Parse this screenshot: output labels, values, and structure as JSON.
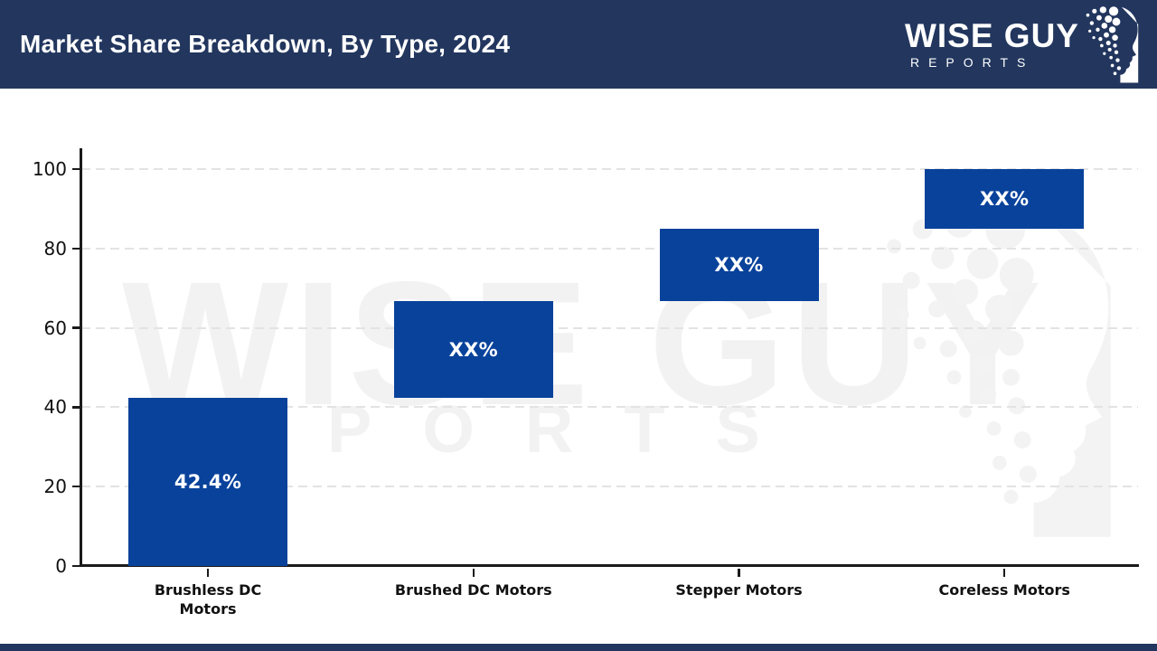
{
  "header": {
    "title": "Market Share Breakdown, By Type, 2024",
    "logo": {
      "wordmark": "WISE GUY",
      "subtext": "REPORTS"
    }
  },
  "watermark": {
    "line1": "WISE GUY",
    "line2": "PORTS"
  },
  "chart_data": {
    "type": "bar",
    "subtype": "waterfall-floating-bars",
    "title": "Market Share Breakdown, By Type, 2024",
    "categories": [
      "Brushless DC Motors",
      "Brushed DC Motors",
      "Stepper Motors",
      "Coreless Motors"
    ],
    "segments": [
      {
        "category": "Brushless DC Motors",
        "start": 0,
        "end": 42.4,
        "label": "42.4%"
      },
      {
        "category": "Brushed DC Motors",
        "start": 42.4,
        "end": 66.7,
        "label": "XX%"
      },
      {
        "category": "Stepper Motors",
        "start": 66.7,
        "end": 85.0,
        "label": "XX%"
      },
      {
        "category": "Coreless Motors",
        "start": 85.0,
        "end": 100.0,
        "label": "XX%"
      }
    ],
    "xlabel": "",
    "ylabel": "",
    "ylim": [
      0,
      100
    ],
    "yticks": [
      0,
      20,
      40,
      60,
      80,
      100
    ],
    "grid": "horizontal-dashed",
    "legend": "none",
    "bar_color": "#08429b",
    "value_label_color": "#ffffff"
  },
  "colors": {
    "header_bg": "#22365e",
    "footer_bg": "#22365e",
    "bar": "#08429b",
    "grid": "#e3e3e3",
    "axis": "#1a1a1a",
    "watermark": "#f2f2f2"
  }
}
